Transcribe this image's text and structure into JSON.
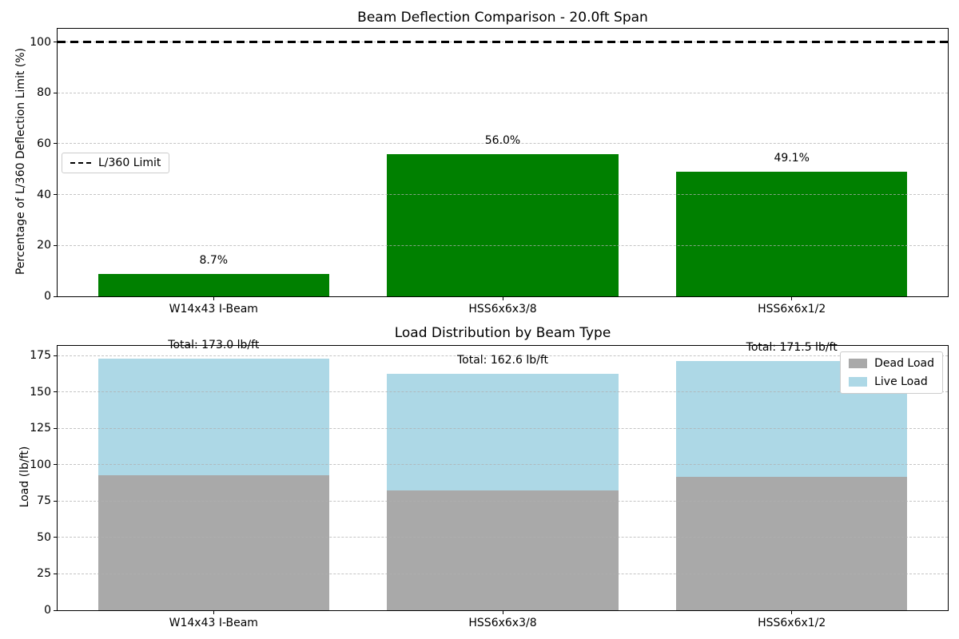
{
  "chart_data": [
    {
      "type": "bar",
      "title": "Beam Deflection Comparison - 20.0ft Span",
      "ylabel": "Percentage of L/360 Deflection Limit (%)",
      "categories": [
        "W14x43 I-Beam",
        "HSS6x6x3/8",
        "HSS6x6x1/2"
      ],
      "values": [
        8.7,
        56.0,
        49.1
      ],
      "bar_labels": [
        "8.7%",
        "56.0%",
        "49.1%"
      ],
      "bar_color": "#008000",
      "yticks": [
        0,
        20,
        40,
        60,
        80,
        100
      ],
      "ylim": [
        0,
        105.2
      ],
      "grid": true,
      "ref_line": {
        "value": 100,
        "label": "L/360 Limit",
        "color": "#000000",
        "style": "dashed"
      },
      "legend": {
        "position": "center-left",
        "entries": [
          {
            "label": "L/360 Limit",
            "swatch": "dashed-black-line"
          }
        ]
      }
    },
    {
      "type": "stacked-bar",
      "title": "Load Distribution by Beam Type",
      "ylabel": "Load (lb/ft)",
      "categories": [
        "W14x43 I-Beam",
        "HSS6x6x3/8",
        "HSS6x6x1/2"
      ],
      "series": [
        {
          "name": "Dead Load",
          "color": "#a9a9a9",
          "values": [
            93.0,
            82.6,
            91.5
          ]
        },
        {
          "name": "Live Load",
          "color": "#add8e6",
          "values": [
            80.0,
            80.0,
            80.0
          ]
        }
      ],
      "totals": [
        173.0,
        162.6,
        171.5
      ],
      "total_labels": [
        "Total: 173.0 lb/ft",
        "Total: 162.6 lb/ft",
        "Total: 171.5 lb/ft"
      ],
      "yticks": [
        0,
        25,
        50,
        75,
        100,
        125,
        150,
        175
      ],
      "ylim": [
        0,
        181.65
      ],
      "grid": true,
      "legend": {
        "position": "upper-right",
        "entries": [
          {
            "label": "Dead Load",
            "swatch": "gray-box"
          },
          {
            "label": "Live Load",
            "swatch": "lightblue-box"
          }
        ]
      }
    }
  ]
}
